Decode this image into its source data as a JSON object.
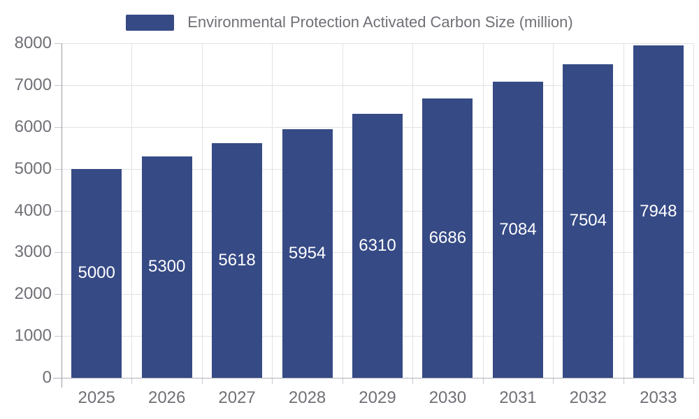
{
  "chart_data": {
    "type": "bar",
    "title": "",
    "legend": {
      "label": "Environmental Protection Activated Carbon Size (million)",
      "position": "top-center"
    },
    "categories": [
      "2025",
      "2026",
      "2027",
      "2028",
      "2029",
      "2030",
      "2031",
      "2032",
      "2033"
    ],
    "series": [
      {
        "name": "Environmental Protection Activated Carbon Size (million)",
        "values": [
          5000,
          5300,
          5618,
          5954,
          6310,
          6686,
          7084,
          7504,
          7948
        ]
      }
    ],
    "value_labels": [
      "5000",
      "5300",
      "5618",
      "5954",
      "6310",
      "6686",
      "7084",
      "7504",
      "7948"
    ],
    "value_label_position": "inside-center",
    "xlabel": "",
    "ylabel": "",
    "ylim": [
      0,
      8000
    ],
    "ytick_step": 1000,
    "ytick_labels": [
      "0",
      "1000",
      "2000",
      "3000",
      "4000",
      "5000",
      "6000",
      "7000",
      "8000"
    ],
    "grid": {
      "horizontal": true,
      "vertical": true
    }
  },
  "colors": {
    "bar": "#364A85",
    "grid_line": "#E2E2E7",
    "axis_line_y": "#9A9DA3",
    "axis_line_x": "#ADAFB5",
    "tick": "#C6C9CF",
    "axis_text": "#6F7076",
    "value_text": "#FFFFFF",
    "background": "#FFFFFF"
  }
}
